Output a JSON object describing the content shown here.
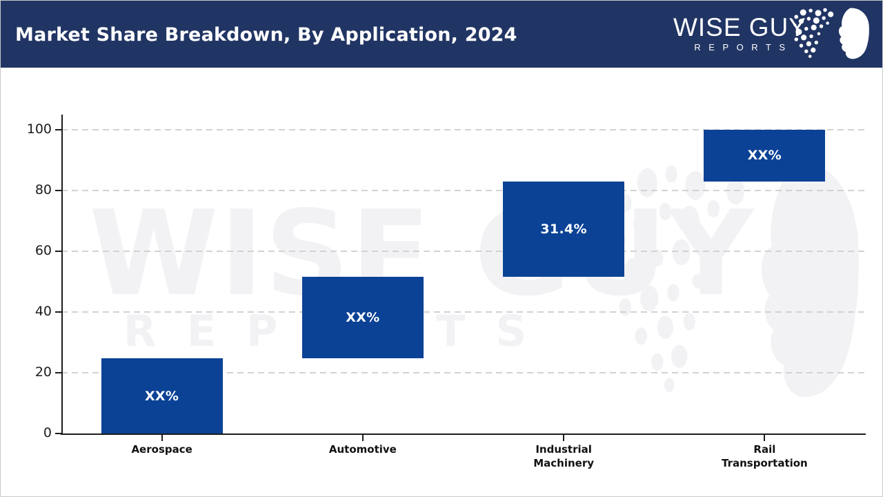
{
  "header": {
    "title": "Market Share Breakdown, By Application, 2024",
    "bg_color": "#213564",
    "logo": {
      "line1": "WISE GUY",
      "line2": "REPORTS"
    }
  },
  "watermark": {
    "line1": "WISE GUY",
    "line2": "REPORTS"
  },
  "chart_data": {
    "type": "bar",
    "subtype": "floating-waterfall",
    "title": "Market Share Breakdown, By Application, 2024",
    "categories": [
      "Aerospace",
      "Automotive",
      "Industrial\nMachinery",
      "Rail\nTransportation"
    ],
    "segments": [
      {
        "category": "Aerospace",
        "start": 0,
        "end": 24.7,
        "value": 24.7,
        "label": "XX%"
      },
      {
        "category": "Automotive",
        "start": 24.7,
        "end": 51.6,
        "value": 26.9,
        "label": "XX%"
      },
      {
        "category": "Industrial Machinery",
        "start": 51.6,
        "end": 83.0,
        "value": 31.4,
        "label": "31.4%"
      },
      {
        "category": "Rail Transportation",
        "start": 83.0,
        "end": 100.0,
        "value": 17.0,
        "label": "XX%"
      }
    ],
    "yticks": [
      0,
      20,
      40,
      60,
      80,
      100
    ],
    "ylim": [
      0,
      105
    ],
    "xlabel": "",
    "ylabel": "",
    "grid": "horizontal-dashed",
    "legend": "none",
    "bar_color": "#0b4295",
    "bar_label_color": "#ffffff",
    "gridline_color": "#d2d2d2",
    "axis_color": "#1c1c1c"
  }
}
